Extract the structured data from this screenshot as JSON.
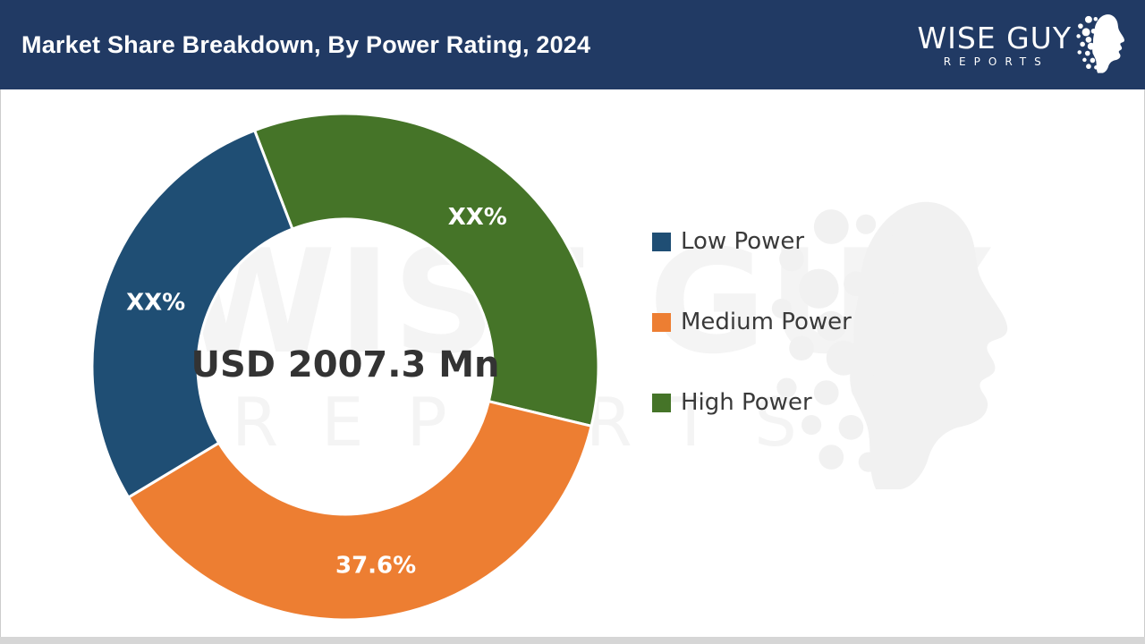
{
  "header": {
    "title": "Market Share Breakdown, By Power Rating, 2024",
    "bg_color": "#213A64",
    "logo": {
      "line1": "WISE GUY",
      "line2": "REPORTS"
    }
  },
  "watermark": {
    "line1": "WISE GUY",
    "line2": "REPORTS"
  },
  "chart_data": {
    "type": "pie",
    "subtype": "donut",
    "title": "Market Share Breakdown, By Power Rating, 2024",
    "center_label": "USD 2007.3 Mn",
    "direction": "clockwise",
    "start_angle_deg": -21,
    "inner_radius_ratio": 0.583,
    "legend_position": "right",
    "slices": [
      {
        "label": "High Power",
        "display_value": "XX%",
        "value": 34.6,
        "color": "#457428"
      },
      {
        "label": "Medium Power",
        "display_value": "37.6%",
        "value": 37.6,
        "color": "#ED7E32"
      },
      {
        "label": "Low Power",
        "display_value": "XX%",
        "value": 27.8,
        "color": "#1F4E74"
      }
    ],
    "legend": [
      {
        "label": "Low Power",
        "color": "#1F4E74"
      },
      {
        "label": "Medium Power",
        "color": "#ED7E32"
      },
      {
        "label": "High Power",
        "color": "#457428"
      }
    ]
  }
}
